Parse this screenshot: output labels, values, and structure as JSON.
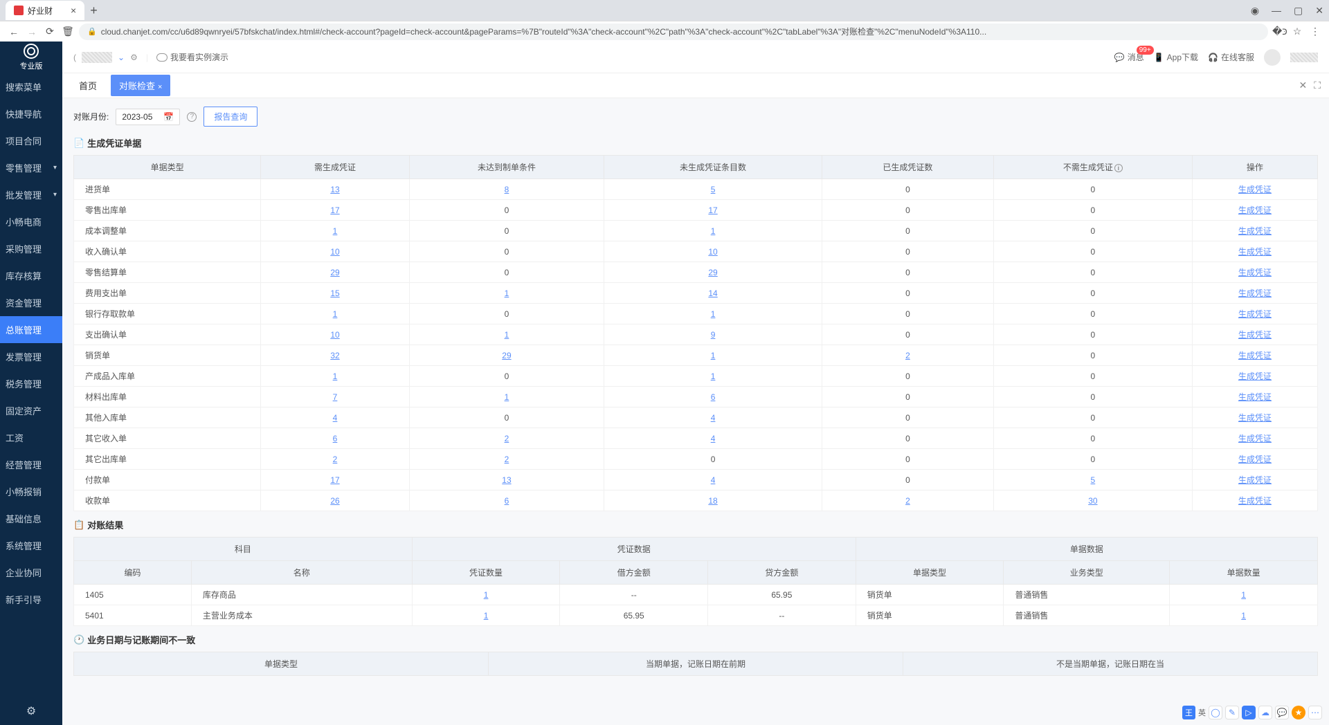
{
  "browser": {
    "tab_title": "好业财",
    "url": "cloud.chanjet.com/cc/u6d89qwnryei/57bfskchat/index.html#/check-account?pageId=check-account&pageParams=%7B\"routeId\"%3A\"check-account\"%2C\"path\"%3A\"check-account\"%2C\"tabLabel\"%3A\"对账检查\"%2C\"menuNodeId\"%3A110..."
  },
  "topbar": {
    "edition": "专业版",
    "demo_link": "我要看实例演示",
    "msg": "消息",
    "msg_badge": "99+",
    "app_download": "App下载",
    "online_service": "在线客服"
  },
  "sidebar": {
    "items": [
      {
        "label": "搜索菜单",
        "chevron": false
      },
      {
        "label": "快捷导航",
        "chevron": false
      },
      {
        "label": "项目合同",
        "chevron": false
      },
      {
        "label": "零售管理",
        "chevron": true
      },
      {
        "label": "批发管理",
        "chevron": true
      },
      {
        "label": "小畅电商",
        "chevron": false
      },
      {
        "label": "采购管理",
        "chevron": false
      },
      {
        "label": "库存核算",
        "chevron": false
      },
      {
        "label": "资金管理",
        "chevron": false
      },
      {
        "label": "总账管理",
        "chevron": false,
        "active": true
      },
      {
        "label": "发票管理",
        "chevron": false
      },
      {
        "label": "税务管理",
        "chevron": false
      },
      {
        "label": "固定资产",
        "chevron": false
      },
      {
        "label": "工资",
        "chevron": false
      },
      {
        "label": "经营管理",
        "chevron": false
      },
      {
        "label": "小畅报销",
        "chevron": false
      },
      {
        "label": "基础信息",
        "chevron": false
      },
      {
        "label": "系统管理",
        "chevron": false
      },
      {
        "label": "企业协同",
        "chevron": false
      },
      {
        "label": "新手引导",
        "chevron": false
      }
    ]
  },
  "tabs": {
    "home": "首页",
    "active": "对账检查"
  },
  "filters": {
    "month_label": "对账月份:",
    "month_value": "2023-05",
    "report_btn": "报告查询"
  },
  "section1": {
    "title": "生成凭证单据",
    "columns": [
      "单据类型",
      "需生成凭证",
      "未达到制单条件",
      "未生成凭证条目数",
      "已生成凭证数",
      "不需生成凭证",
      "操作"
    ],
    "action_label": "生成凭证",
    "rows": [
      {
        "type": "进货单",
        "need": "13",
        "notmet": "8",
        "nogen": "5",
        "gen": "0",
        "noneed": "0"
      },
      {
        "type": "零售出库单",
        "need": "17",
        "notmet": "0",
        "nogen": "17",
        "gen": "0",
        "noneed": "0"
      },
      {
        "type": "成本调整单",
        "need": "1",
        "notmet": "0",
        "nogen": "1",
        "gen": "0",
        "noneed": "0"
      },
      {
        "type": "收入确认单",
        "need": "10",
        "notmet": "0",
        "nogen": "10",
        "gen": "0",
        "noneed": "0"
      },
      {
        "type": "零售结算单",
        "need": "29",
        "notmet": "0",
        "nogen": "29",
        "gen": "0",
        "noneed": "0"
      },
      {
        "type": "费用支出单",
        "need": "15",
        "notmet": "1",
        "nogen": "14",
        "gen": "0",
        "noneed": "0"
      },
      {
        "type": "银行存取款单",
        "need": "1",
        "notmet": "0",
        "nogen": "1",
        "gen": "0",
        "noneed": "0"
      },
      {
        "type": "支出确认单",
        "need": "10",
        "notmet": "1",
        "nogen": "9",
        "gen": "0",
        "noneed": "0"
      },
      {
        "type": "销货单",
        "need": "32",
        "notmet": "29",
        "nogen": "1",
        "gen": "2",
        "noneed": "0"
      },
      {
        "type": "产成品入库单",
        "need": "1",
        "notmet": "0",
        "nogen": "1",
        "gen": "0",
        "noneed": "0"
      },
      {
        "type": "材料出库单",
        "need": "7",
        "notmet": "1",
        "nogen": "6",
        "gen": "0",
        "noneed": "0"
      },
      {
        "type": "其他入库单",
        "need": "4",
        "notmet": "0",
        "nogen": "4",
        "gen": "0",
        "noneed": "0"
      },
      {
        "type": "其它收入单",
        "need": "6",
        "notmet": "2",
        "nogen": "4",
        "gen": "0",
        "noneed": "0"
      },
      {
        "type": "其它出库单",
        "need": "2",
        "notmet": "2",
        "nogen": "0",
        "gen": "0",
        "noneed": "0"
      },
      {
        "type": "付款单",
        "need": "17",
        "notmet": "13",
        "nogen": "4",
        "gen": "0",
        "noneed": "5"
      },
      {
        "type": "收款单",
        "need": "26",
        "notmet": "6",
        "nogen": "18",
        "gen": "2",
        "noneed": "30"
      }
    ]
  },
  "section2": {
    "title": "对账结果",
    "header_top": [
      "科目",
      "凭证数据",
      "单据数据"
    ],
    "header_sub": [
      "编码",
      "名称",
      "凭证数量",
      "借方金额",
      "贷方金额",
      "单据类型",
      "业务类型",
      "单据数量"
    ],
    "rows": [
      {
        "code": "1405",
        "name": "库存商品",
        "vcount": "1",
        "debit": "--",
        "credit": "65.95",
        "btype": "销货单",
        "biztype": "普通销售",
        "bcount": "1"
      },
      {
        "code": "5401",
        "name": "主营业务成本",
        "vcount": "1",
        "debit": "65.95",
        "credit": "--",
        "btype": "销货单",
        "biztype": "普通销售",
        "bcount": "1"
      }
    ]
  },
  "section3": {
    "title": "业务日期与记账期间不一致",
    "columns": [
      "单据类型",
      "当期单据，记账日期在前期",
      "不是当期单据，记账日期在当"
    ]
  }
}
